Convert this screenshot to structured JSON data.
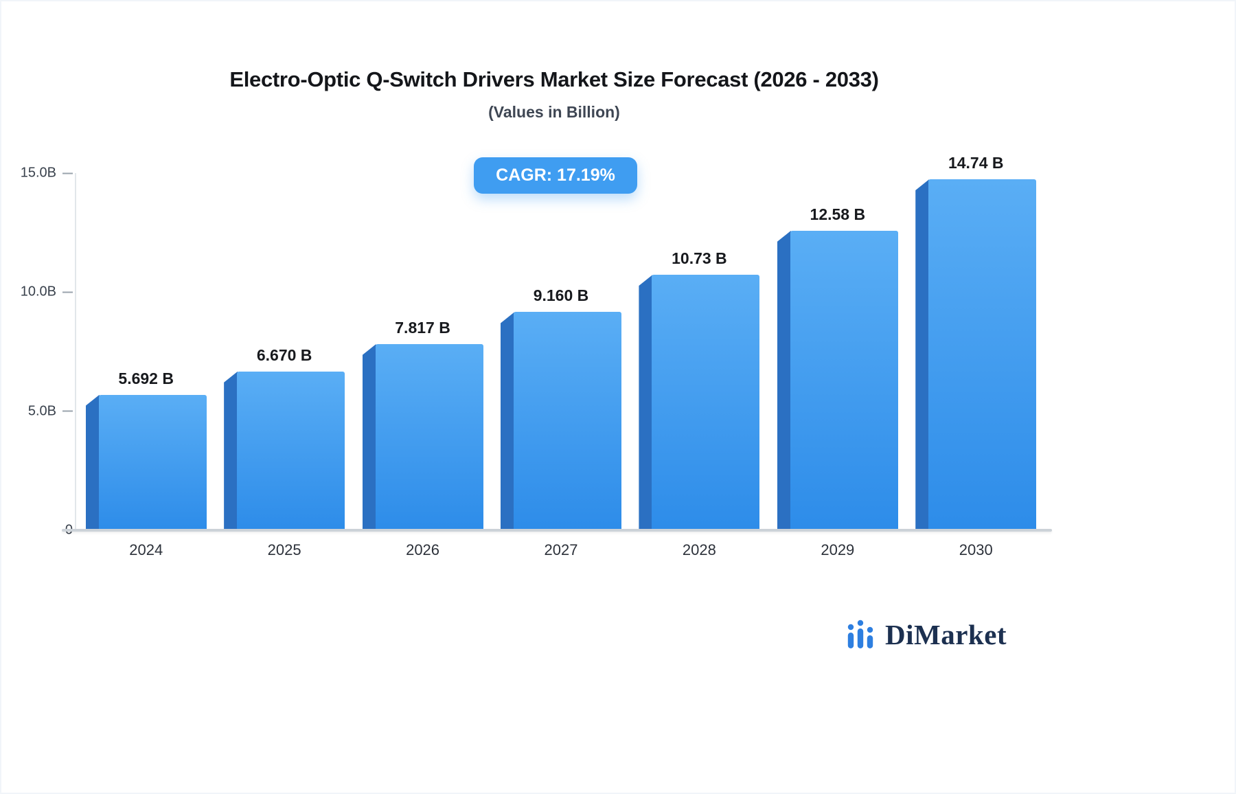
{
  "header": {
    "title": "Electro-Optic Q-Switch Drivers Market Size Forecast (2026 - 2033)",
    "subtitle": "(Values in Billion)"
  },
  "badge": {
    "label": "CAGR: 17.19%"
  },
  "chart_data": {
    "type": "bar",
    "title": "Electro-Optic Q-Switch Drivers Market Size Forecast (2026 - 2033)",
    "subtitle": "(Values in Billion)",
    "cagr_percent": 17.19,
    "categories": [
      "2024",
      "2025",
      "2026",
      "2027",
      "2028",
      "2029",
      "2030"
    ],
    "values": [
      5.692,
      6.67,
      7.817,
      9.16,
      10.73,
      12.58,
      14.74
    ],
    "value_labels": [
      "5.692 B",
      "6.670 B",
      "7.817 B",
      "9.160 B",
      "10.73 B",
      "12.58 B",
      "14.74 B"
    ],
    "xlabel": "",
    "ylabel": "",
    "ylim": [
      0,
      15
    ],
    "yticks": [
      {
        "value": 0,
        "label": "0",
        "dash": false
      },
      {
        "value": 5,
        "label": "5.0B",
        "dash": true
      },
      {
        "value": 10,
        "label": "10.0B",
        "dash": true
      },
      {
        "value": 15,
        "label": "15.0B",
        "dash": true
      }
    ],
    "grid": false,
    "legend": "none",
    "units": "Billion"
  },
  "footer": {
    "brand": "DiMarket"
  },
  "colors": {
    "badge_bg": "#3f9df1",
    "bar_top": "#5aaef5",
    "bar_bottom": "#2d8ce9",
    "bar_side": "#2b70c2",
    "brand_icon": "#2e7fe0",
    "brand_text": "#1c3050"
  }
}
